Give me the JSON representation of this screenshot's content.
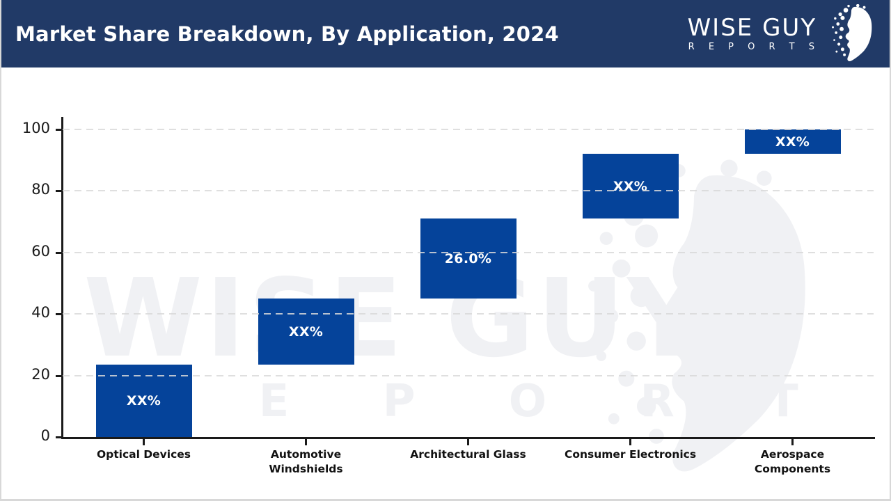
{
  "header": {
    "title": "Market Share Breakdown, By Application, 2024",
    "bg_color": "#213A67",
    "logo": {
      "line1": "WISE GUY",
      "line2": "R E P O R T S"
    }
  },
  "watermark": {
    "line1": "WISE GUY",
    "line2": "R E P O R T S",
    "color": "#f0f1f4"
  },
  "chart_data": {
    "type": "bar",
    "subtype": "waterfall",
    "title": "Market Share Breakdown, By Application, 2024",
    "categories": [
      "Optical Devices",
      "Automotive Windshields",
      "Architectural Glass",
      "Consumer Electronics",
      "Aerospace Components"
    ],
    "segments": [
      {
        "category": "Optical Devices",
        "start": 0,
        "end": 23.5,
        "value": 23.5,
        "label": "XX%"
      },
      {
        "category": "Automotive Windshields",
        "start": 23.5,
        "end": 45,
        "value": 21.5,
        "label": "XX%"
      },
      {
        "category": "Architectural Glass",
        "start": 45,
        "end": 71,
        "value": 26.0,
        "label": "26.0%"
      },
      {
        "category": "Consumer Electronics",
        "start": 71,
        "end": 92,
        "value": 21.0,
        "label": "XX%"
      },
      {
        "category": "Aerospace Components",
        "start": 92,
        "end": 100,
        "value": 8.0,
        "label": "XX%"
      }
    ],
    "yticks": [
      0,
      20,
      40,
      60,
      80,
      100
    ],
    "ylim": [
      0,
      104
    ],
    "xlabel": "",
    "ylabel": "",
    "grid": true,
    "grid_style": "dashed",
    "legend": false,
    "bar_color": "#05439A",
    "bar_label_color": "#ffffff",
    "axis_color": "#1a1a1a",
    "grid_color": "#d9d9d9"
  }
}
